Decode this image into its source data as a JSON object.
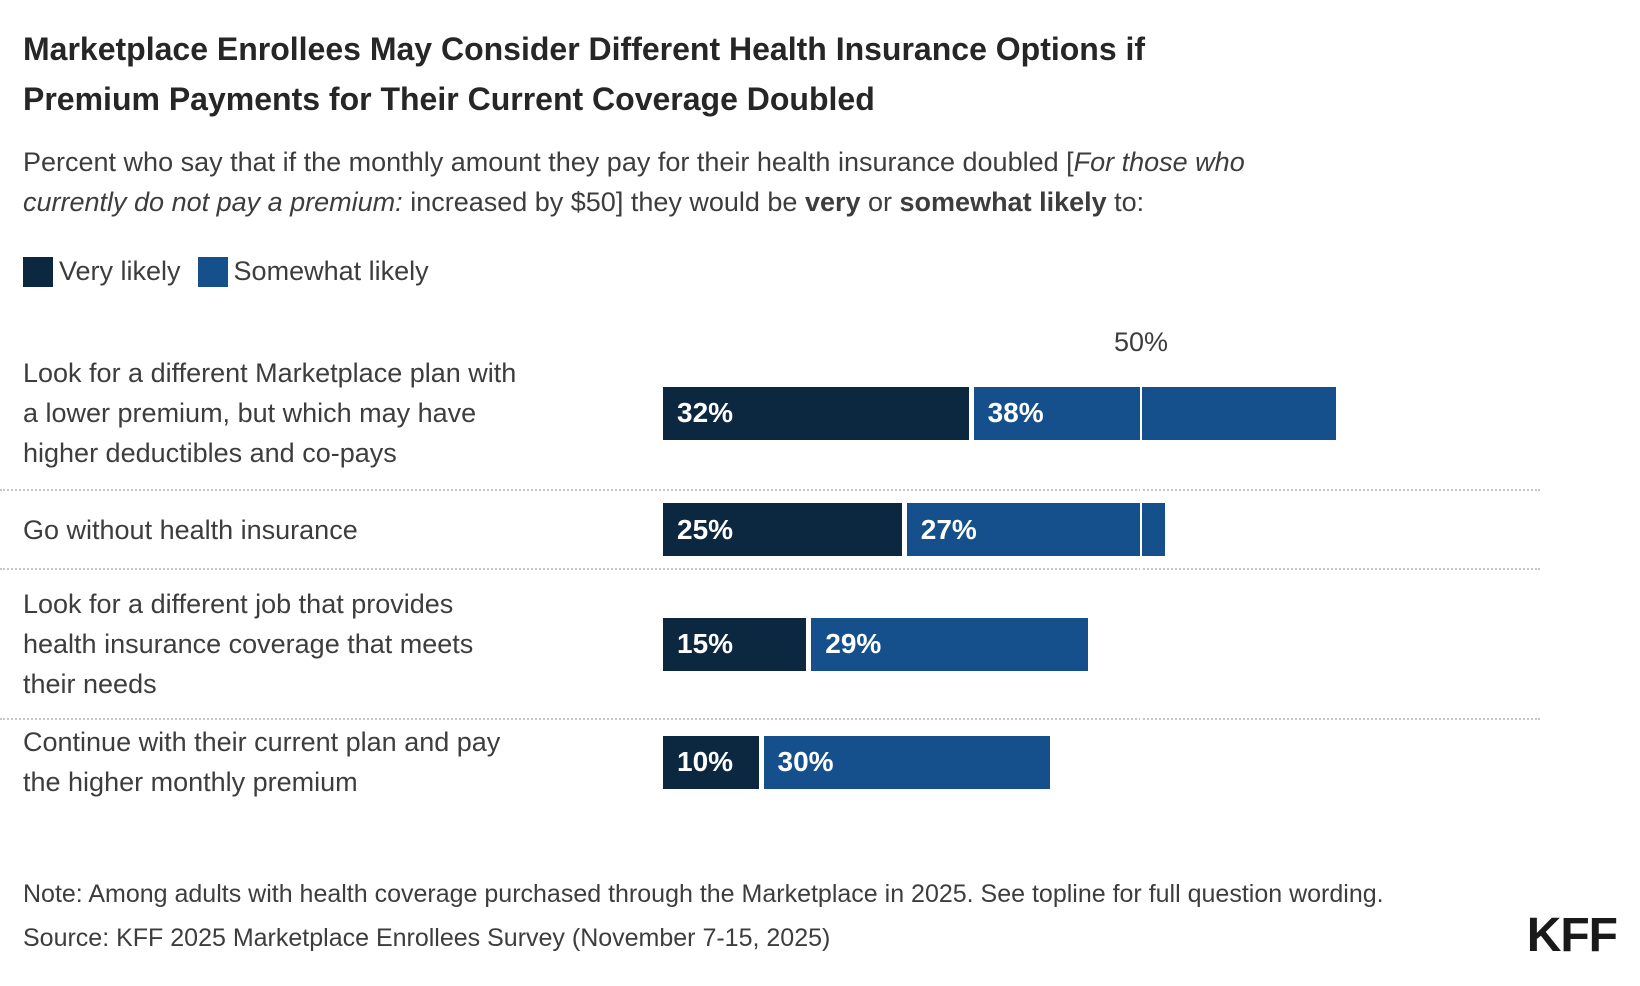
{
  "title": {
    "line1": "Marketplace Enrollees May Consider Different Health Insurance Options if",
    "line2": "Premium Payments for Their Current Coverage Doubled"
  },
  "subtitle": {
    "part1": "Percent who say that if the monthly amount they pay for their health insurance doubled [",
    "italic_a": "For those who",
    "italic_b": "currently do not pay a premium:",
    "part2": " increased by $50] they would be ",
    "bold1": "very",
    "part3": " or ",
    "bold2": "somewhat likely",
    "part4": " to:"
  },
  "chart_data": {
    "type": "bar",
    "orientation": "horizontal-stacked",
    "unit": "%",
    "categories": [
      "Look for a different Marketplace plan with\na lower premium, but which may have\nhigher deductibles and co-pays",
      "Go without health insurance",
      "Look for a different job that provides\nhealth insurance coverage that meets\ntheir needs",
      "Continue with their current plan and pay\nthe higher monthly premium"
    ],
    "series": [
      {
        "name": "Very likely",
        "color": "#0c2740",
        "values": [
          32,
          25,
          15,
          10
        ]
      },
      {
        "name": "Somewhat likely",
        "color": "#15508c",
        "values": [
          38,
          27,
          29,
          30
        ]
      }
    ],
    "value_labels": [
      [
        "32%",
        "38%"
      ],
      [
        "25%",
        "27%"
      ],
      [
        "15%",
        "29%"
      ],
      [
        "10%",
        "30%"
      ]
    ],
    "axis": {
      "xlim": [
        0,
        100
      ],
      "gridline_value": 50,
      "gridline_label": "50%"
    },
    "legend_position": "top-left",
    "grid": "single 50% white tick line over bars"
  },
  "note": "Note: Among adults with health coverage purchased through the Marketplace in 2025. See topline for full question wording.",
  "source": "Source: KFF 2025 Marketplace Enrollees Survey (November 7-15, 2025)",
  "logo": {
    "text": "KFF"
  },
  "colors": {
    "very_likely": "#0c2740",
    "somewhat_likely": "#15508c",
    "title_text": "#262626",
    "body_text": "#3d3d3d",
    "bar_value_text": "#ffffff",
    "separator": "#c7c7c7",
    "background": "#ffffff"
  }
}
